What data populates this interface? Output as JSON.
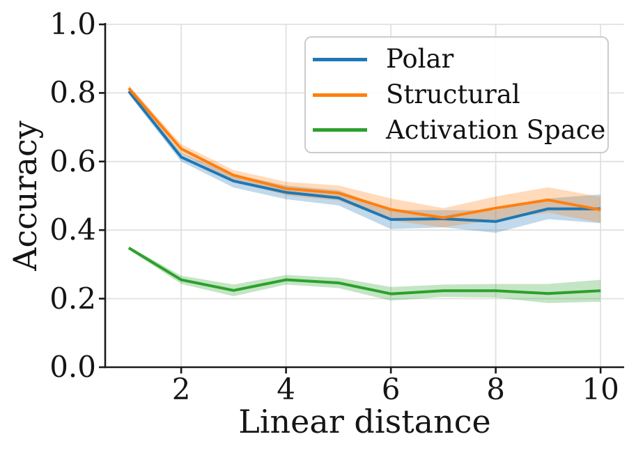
{
  "figure": {
    "background": "#ffffff"
  },
  "colors": {
    "grid": "#e0e0e0",
    "spine": "#1a1a1a",
    "tick": "#1a1a1a",
    "text": "#151515",
    "legend_border": "#cccccc",
    "band_opacity": 0.28
  },
  "chart_data": {
    "type": "line",
    "title": "",
    "xlabel": "Linear distance",
    "ylabel": "Accuracy",
    "grid": true,
    "x": [
      1,
      2,
      3,
      4,
      5,
      6,
      7,
      8,
      9,
      10
    ],
    "xlim": [
      0.55,
      10.45
    ],
    "ylim": [
      0.0,
      1.0
    ],
    "xticks": {
      "values": [
        2,
        4,
        6,
        8,
        10
      ],
      "labels": [
        "2",
        "4",
        "6",
        "8",
        "10"
      ]
    },
    "yticks": {
      "values": [
        0.0,
        0.2,
        0.4,
        0.6,
        0.8,
        1.0
      ],
      "labels": [
        "0.0",
        "0.2",
        "0.4",
        "0.6",
        "0.8",
        "1.0"
      ]
    },
    "legend": {
      "position": "upper right",
      "entries": [
        "Polar",
        "Structural",
        "Activation Space"
      ]
    },
    "series": [
      {
        "name": "Polar",
        "color": "#1f77b4",
        "values": [
          0.805,
          0.613,
          0.543,
          0.51,
          0.494,
          0.431,
          0.433,
          0.425,
          0.462,
          0.462
        ],
        "band_lower": [
          0.796,
          0.6,
          0.524,
          0.49,
          0.472,
          0.403,
          0.408,
          0.392,
          0.432,
          0.42
        ],
        "band_upper": [
          0.814,
          0.626,
          0.562,
          0.53,
          0.516,
          0.459,
          0.458,
          0.458,
          0.492,
          0.504
        ]
      },
      {
        "name": "Structural",
        "color": "#ff7f0e",
        "values": [
          0.814,
          0.637,
          0.56,
          0.521,
          0.508,
          0.46,
          0.436,
          0.464,
          0.488,
          0.459
        ],
        "band_lower": [
          0.806,
          0.623,
          0.545,
          0.501,
          0.486,
          0.428,
          0.408,
          0.43,
          0.451,
          0.421
        ],
        "band_upper": [
          0.822,
          0.651,
          0.575,
          0.541,
          0.53,
          0.492,
          0.464,
          0.498,
          0.525,
          0.497
        ]
      },
      {
        "name": "Activation Space",
        "color": "#2ca02c",
        "values": [
          0.348,
          0.255,
          0.224,
          0.255,
          0.246,
          0.214,
          0.223,
          0.223,
          0.215,
          0.223
        ],
        "band_lower": [
          0.343,
          0.243,
          0.207,
          0.241,
          0.231,
          0.194,
          0.205,
          0.203,
          0.187,
          0.191
        ],
        "band_upper": [
          0.353,
          0.267,
          0.241,
          0.269,
          0.261,
          0.234,
          0.241,
          0.243,
          0.243,
          0.255
        ]
      }
    ]
  }
}
